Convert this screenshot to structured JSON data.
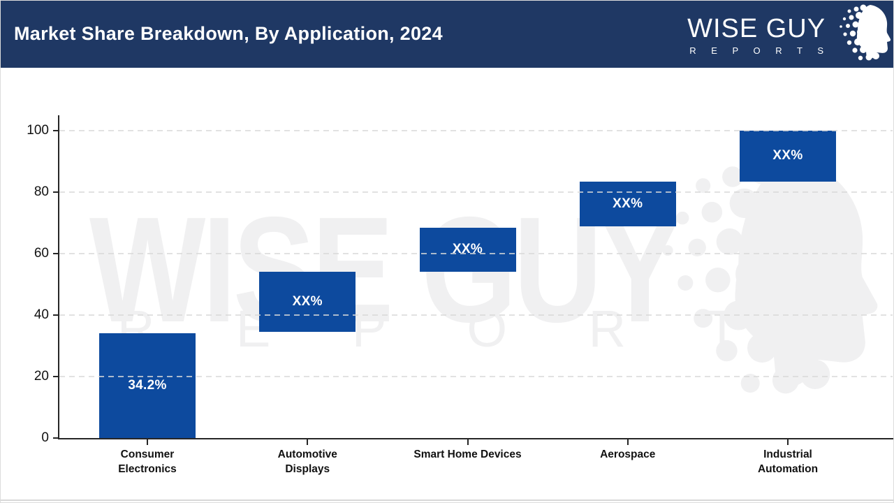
{
  "header": {
    "title": "Market Share Breakdown, By Application, 2024",
    "logo": {
      "line1": "WISE GUY",
      "line2": "R E P O R T S"
    }
  },
  "watermark": {
    "line1": "WISE GUY",
    "line2": "R E P O R T S"
  },
  "colors": {
    "header_bg": "#1f3864",
    "bar": "#0d4a9e",
    "bar_label": "#ffffff",
    "grid": "#d9d9d9",
    "axis": "#262626",
    "text": "#111111",
    "watermark": "#f0f0f1",
    "border": "#dcdcdc"
  },
  "chart_data": {
    "type": "bar",
    "subtype": "waterfall",
    "title": "Market Share Breakdown, By Application, 2024",
    "xlabel": "",
    "ylabel": "",
    "categories": [
      "Consumer\nElectronics",
      "Automotive\nDisplays",
      "Smart Home Devices",
      "Aerospace",
      "Industrial\nAutomation"
    ],
    "segments": [
      {
        "category": "Consumer Electronics",
        "start": 0,
        "end": 34.2,
        "label": "34.2%"
      },
      {
        "category": "Automotive Displays",
        "start": 34.5,
        "end": 54.0,
        "label": "XX%"
      },
      {
        "category": "Smart Home Devices",
        "start": 54.2,
        "end": 68.3,
        "label": "XX%"
      },
      {
        "category": "Aerospace",
        "start": 68.8,
        "end": 83.5,
        "label": "XX%"
      },
      {
        "category": "Industrial Automation",
        "start": 83.5,
        "end": 100,
        "label": "XX%"
      }
    ],
    "increments_est": [
      34.2,
      19.5,
      14.1,
      14.7,
      16.5
    ],
    "yticks": [
      0,
      20,
      40,
      60,
      80,
      100
    ],
    "ylim": [
      0,
      105
    ],
    "grid": "dashed-horizontal",
    "legend": "none"
  }
}
